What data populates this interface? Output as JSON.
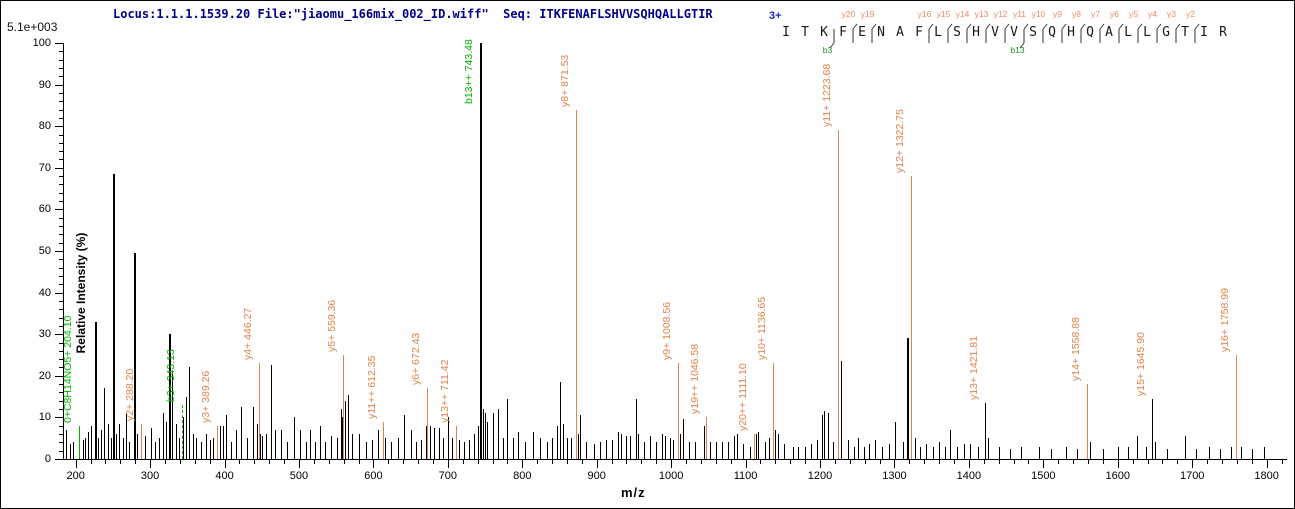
{
  "header": {
    "locus_file": "Locus:1.1.1.1539.20 File:\"jiaomu_166mix_002_ID.wiff\"",
    "seq_label": "  Seq: ",
    "sequence": "ITKFENAFLSHVVSQHQALLGTIR",
    "intensity_scale": "5.1e+003",
    "charge": "3+"
  },
  "sequence_panel": {
    "residues": [
      "I",
      "T",
      "K",
      "F",
      "E",
      "N",
      "A",
      "F",
      "L",
      "S",
      "H",
      "V",
      "V",
      "S",
      "Q",
      "H",
      "Q",
      "A",
      "L",
      "L",
      "G",
      "T",
      "I",
      "R"
    ],
    "cleavages": [
      {
        "after": 3,
        "b": "b3"
      },
      {
        "after": 4,
        "y": "y20"
      },
      {
        "after": 5,
        "y": "y19"
      },
      {
        "after": 8,
        "y": "y16"
      },
      {
        "after": 9,
        "y": "y15"
      },
      {
        "after": 10,
        "y": "y14"
      },
      {
        "after": 11,
        "y": "y13"
      },
      {
        "after": 12,
        "y": "y12"
      },
      {
        "after": 13,
        "y": "y11",
        "b": "b13"
      },
      {
        "after": 14,
        "y": "y10"
      },
      {
        "after": 15,
        "y": "y9"
      },
      {
        "after": 16,
        "y": "y8"
      },
      {
        "after": 17,
        "y": "y7"
      },
      {
        "after": 18,
        "y": "y6"
      },
      {
        "after": 19,
        "y": "y5"
      },
      {
        "after": 20,
        "y": "y4"
      },
      {
        "after": 21,
        "y": "y3"
      },
      {
        "after": 22,
        "y": "y2"
      }
    ]
  },
  "axes": {
    "x_label": "m/z",
    "y_label": "Relative  Intensity (%)",
    "x_min": 183,
    "x_max": 1826,
    "x_major_ticks": [
      200,
      300,
      400,
      500,
      600,
      700,
      800,
      900,
      1000,
      1100,
      1200,
      1300,
      1400,
      1500,
      1600,
      1700,
      1800
    ],
    "x_minor_step": 20,
    "y_min": 0,
    "y_max": 100,
    "y_major_ticks": [
      0,
      10,
      20,
      30,
      40,
      50,
      60,
      70,
      80,
      90,
      100
    ],
    "y_minor_step": 2
  },
  "colors": {
    "peak": "#000000",
    "y_ion": "#e2834c",
    "b_ion": "#228b22",
    "matched_green": "#00b400",
    "title": "#00008b",
    "charge": "#2222cc"
  },
  "chart_data": {
    "type": "bar",
    "subtype": "ms2-centroided-mass-spectrum",
    "title": "Locus:1.1.1.1539.20 File:\"jiaomu_166mix_002_ID.wiff\" Seq: ITKFENAFLSHVVSQHQALLGTIR",
    "xlabel": "m/z",
    "ylabel": "Relative  Intensity (%)",
    "xlim": [
      183,
      1826
    ],
    "ylim": [
      0,
      100
    ],
    "base_peak_intensity": "5.1e+003",
    "precursor_charge": "3+",
    "labeled_peaks": [
      {
        "label": "0+C8H14NO5+ 204.10",
        "mz": 204.1,
        "intensity_pct": 8,
        "line_color": "green",
        "label_color": "green"
      },
      {
        "label": "y2+ 288.20",
        "mz": 288.2,
        "intensity_pct": 8.5,
        "line_color": "orange",
        "label_color": "orange"
      },
      {
        "label": "b3+ 343.13",
        "mz": 343.13,
        "intensity_pct": 13,
        "line_color": "green",
        "label_color": "green",
        "dashed": true
      },
      {
        "label": "y3+ 389.26",
        "mz": 389.26,
        "intensity_pct": 8,
        "line_color": "orange",
        "label_color": "orange"
      },
      {
        "label": "y4+ 446.27",
        "mz": 446.27,
        "intensity_pct": 23,
        "line_color": "orange",
        "label_color": "orange"
      },
      {
        "label": "y5+ 559.36",
        "mz": 559.36,
        "intensity_pct": 25,
        "line_color": "orange",
        "label_color": "orange"
      },
      {
        "label": "y11++ 612.35",
        "mz": 612.35,
        "intensity_pct": 9,
        "line_color": "orange",
        "label_color": "orange"
      },
      {
        "label": "y6+ 672.43",
        "mz": 672.43,
        "intensity_pct": 17,
        "line_color": "orange",
        "label_color": "orange"
      },
      {
        "label": "y13++ 711.42",
        "mz": 711.42,
        "intensity_pct": 8,
        "line_color": "orange",
        "label_color": "orange"
      },
      {
        "label": "b13++ 743.48",
        "mz": 743.48,
        "intensity_pct": 100,
        "line_color": "black",
        "label_color": "green",
        "label_drop": 64
      },
      {
        "label": "y8+ 871.53",
        "mz": 871.53,
        "intensity_pct": 84,
        "line_color": "orange",
        "label_color": "orange"
      },
      {
        "label": "y9+ 1008.56",
        "mz": 1008.56,
        "intensity_pct": 23,
        "line_color": "orange",
        "label_color": "orange"
      },
      {
        "label": "y19++ 1046.58",
        "mz": 1046.58,
        "intensity_pct": 10,
        "line_color": "orange",
        "label_color": "orange"
      },
      {
        "label": "y20++ 1111.10",
        "mz": 1111.1,
        "intensity_pct": 6,
        "line_color": "orange",
        "label_color": "orange"
      },
      {
        "label": "y10+ 1136.65",
        "mz": 1136.65,
        "intensity_pct": 23,
        "line_color": "orange",
        "label_color": "orange"
      },
      {
        "label": "y11+ 1223.68",
        "mz": 1223.68,
        "intensity_pct": 79,
        "line_color": "orange",
        "label_color": "orange"
      },
      {
        "label": "y12+ 1322.75",
        "mz": 1322.75,
        "intensity_pct": 68,
        "line_color": "orange",
        "label_color": "orange"
      },
      {
        "label": "y13+ 1421.81",
        "mz": 1421.81,
        "intensity_pct": 13.5,
        "line_color": "black",
        "label_color": "orange"
      },
      {
        "label": "y14+ 1558.88",
        "mz": 1558.88,
        "intensity_pct": 18,
        "line_color": "orange",
        "label_color": "orange"
      },
      {
        "label": "y15+ 1645.90",
        "mz": 1645.9,
        "intensity_pct": 14.5,
        "line_color": "black",
        "label_color": "orange"
      },
      {
        "label": "y16+ 1758.99",
        "mz": 1758.99,
        "intensity_pct": 25,
        "line_color": "orange",
        "label_color": "orange"
      }
    ],
    "noise_peaks": [
      [
        183,
        5
      ],
      [
        187,
        7
      ],
      [
        192,
        3.5
      ],
      [
        196,
        4
      ],
      [
        210,
        4.5
      ],
      [
        213,
        5
      ],
      [
        217,
        6.5
      ],
      [
        221,
        8
      ],
      [
        226,
        33
      ],
      [
        230,
        5
      ],
      [
        234,
        7
      ],
      [
        238,
        17
      ],
      [
        243,
        8.5
      ],
      [
        247,
        5
      ],
      [
        250.5,
        68.5
      ],
      [
        254,
        6
      ],
      [
        258,
        8.5
      ],
      [
        263,
        5
      ],
      [
        267,
        11
      ],
      [
        272,
        4
      ],
      [
        278.6,
        49.5
      ],
      [
        283,
        6
      ],
      [
        293,
        5.5
      ],
      [
        301,
        7.5
      ],
      [
        306,
        4
      ],
      [
        312,
        5
      ],
      [
        317,
        11
      ],
      [
        321,
        9
      ],
      [
        326,
        30
      ],
      [
        330,
        21
      ],
      [
        335,
        8.5
      ],
      [
        339,
        5
      ],
      [
        343.6,
        10
      ],
      [
        348,
        15
      ],
      [
        352,
        22
      ],
      [
        357,
        6
      ],
      [
        362,
        5
      ],
      [
        368,
        4
      ],
      [
        375,
        6
      ],
      [
        380,
        4.5
      ],
      [
        385,
        5
      ],
      [
        394,
        8
      ],
      [
        398,
        8
      ],
      [
        402,
        10.5
      ],
      [
        409,
        4
      ],
      [
        415,
        7
      ],
      [
        422,
        12.5
      ],
      [
        430,
        5
      ],
      [
        438,
        12.5
      ],
      [
        443,
        8.5
      ],
      [
        448,
        6
      ],
      [
        451,
        5.5
      ],
      [
        456,
        6
      ],
      [
        462,
        22.5
      ],
      [
        468,
        7
      ],
      [
        476,
        7
      ],
      [
        484,
        4
      ],
      [
        493,
        10
      ],
      [
        502,
        7
      ],
      [
        509,
        4
      ],
      [
        515,
        7
      ],
      [
        521,
        4
      ],
      [
        528,
        8
      ],
      [
        535,
        4
      ],
      [
        543,
        5.5
      ],
      [
        551,
        5
      ],
      [
        556,
        12
      ],
      [
        558,
        10
      ],
      [
        562,
        14
      ],
      [
        566,
        15.5
      ],
      [
        571,
        6
      ],
      [
        581,
        6
      ],
      [
        590,
        4
      ],
      [
        598,
        4.5
      ],
      [
        606,
        7
      ],
      [
        616,
        5
      ],
      [
        624,
        4
      ],
      [
        633,
        5
      ],
      [
        641,
        10.5
      ],
      [
        650,
        7
      ],
      [
        657,
        4
      ],
      [
        664,
        4.5
      ],
      [
        670,
        8
      ],
      [
        676,
        8
      ],
      [
        681,
        7.5
      ],
      [
        688,
        7.5
      ],
      [
        694,
        5
      ],
      [
        700,
        10
      ],
      [
        706,
        5
      ],
      [
        715,
        4.5
      ],
      [
        722,
        4
      ],
      [
        728,
        4.5
      ],
      [
        735,
        6
      ],
      [
        740,
        8
      ],
      [
        747,
        12
      ],
      [
        750,
        11
      ],
      [
        753,
        9
      ],
      [
        760,
        11
      ],
      [
        767,
        12
      ],
      [
        774,
        5
      ],
      [
        780,
        14.5
      ],
      [
        788,
        5
      ],
      [
        794,
        6.5
      ],
      [
        803,
        4
      ],
      [
        815,
        6.5
      ],
      [
        824,
        5
      ],
      [
        833,
        4
      ],
      [
        840,
        5
      ],
      [
        846,
        8
      ],
      [
        851,
        18.5
      ],
      [
        855,
        8.5
      ],
      [
        860,
        5
      ],
      [
        866,
        5
      ],
      [
        875,
        6
      ],
      [
        878,
        10.5
      ],
      [
        886,
        4
      ],
      [
        896,
        3.5
      ],
      [
        905,
        4
      ],
      [
        912,
        4.5
      ],
      [
        920,
        4.5
      ],
      [
        928,
        6.5
      ],
      [
        932,
        6
      ],
      [
        939,
        5.5
      ],
      [
        945,
        5.5
      ],
      [
        953,
        14.5
      ],
      [
        956,
        6
      ],
      [
        964,
        4
      ],
      [
        972,
        5.5
      ],
      [
        980,
        4
      ],
      [
        988,
        6
      ],
      [
        992,
        5.5
      ],
      [
        999,
        5
      ],
      [
        1003,
        4.5
      ],
      [
        1012,
        6
      ],
      [
        1016,
        9.5
      ],
      [
        1024,
        4
      ],
      [
        1032,
        4
      ],
      [
        1044,
        8
      ],
      [
        1052,
        4
      ],
      [
        1060,
        4
      ],
      [
        1068,
        4
      ],
      [
        1076,
        4
      ],
      [
        1084,
        5.5
      ],
      [
        1088,
        6
      ],
      [
        1096,
        3.5
      ],
      [
        1106,
        3
      ],
      [
        1114,
        6
      ],
      [
        1117,
        6.5
      ],
      [
        1126,
        4
      ],
      [
        1131,
        5
      ],
      [
        1140,
        7
      ],
      [
        1143,
        6
      ],
      [
        1152,
        3.5
      ],
      [
        1164,
        3
      ],
      [
        1171,
        3
      ],
      [
        1180,
        3
      ],
      [
        1188,
        3.5
      ],
      [
        1196,
        4.5
      ],
      [
        1203,
        10.5
      ],
      [
        1206,
        11.5
      ],
      [
        1211,
        11
      ],
      [
        1218,
        4
      ],
      [
        1228,
        23.5
      ],
      [
        1237,
        4.5
      ],
      [
        1245,
        3
      ],
      [
        1251,
        5
      ],
      [
        1259,
        3
      ],
      [
        1266,
        3.5
      ],
      [
        1274,
        4.5
      ],
      [
        1283,
        3
      ],
      [
        1292,
        3.5
      ],
      [
        1301,
        9
      ],
      [
        1312,
        4
      ],
      [
        1317,
        29
      ],
      [
        1327,
        5
      ],
      [
        1334,
        3
      ],
      [
        1343,
        3.5
      ],
      [
        1352,
        3
      ],
      [
        1360,
        4
      ],
      [
        1368,
        3
      ],
      [
        1375,
        7
      ],
      [
        1384,
        3
      ],
      [
        1393,
        3.5
      ],
      [
        1401,
        3.5
      ],
      [
        1412,
        3
      ],
      [
        1425,
        5
      ],
      [
        1440,
        3
      ],
      [
        1455,
        2.5
      ],
      [
        1470,
        3
      ],
      [
        1494,
        3
      ],
      [
        1510,
        2.5
      ],
      [
        1530,
        3
      ],
      [
        1545,
        2.5
      ],
      [
        1563,
        4
      ],
      [
        1580,
        2.5
      ],
      [
        1600,
        3
      ],
      [
        1614,
        3
      ],
      [
        1626,
        5.5
      ],
      [
        1638,
        3
      ],
      [
        1650,
        4
      ],
      [
        1666,
        2.5
      ],
      [
        1690,
        5.5
      ],
      [
        1705,
        2.5
      ],
      [
        1722,
        3
      ],
      [
        1738,
        2.5
      ],
      [
        1752,
        3
      ],
      [
        1766,
        3
      ],
      [
        1780,
        2.5
      ],
      [
        1796,
        3
      ]
    ]
  }
}
